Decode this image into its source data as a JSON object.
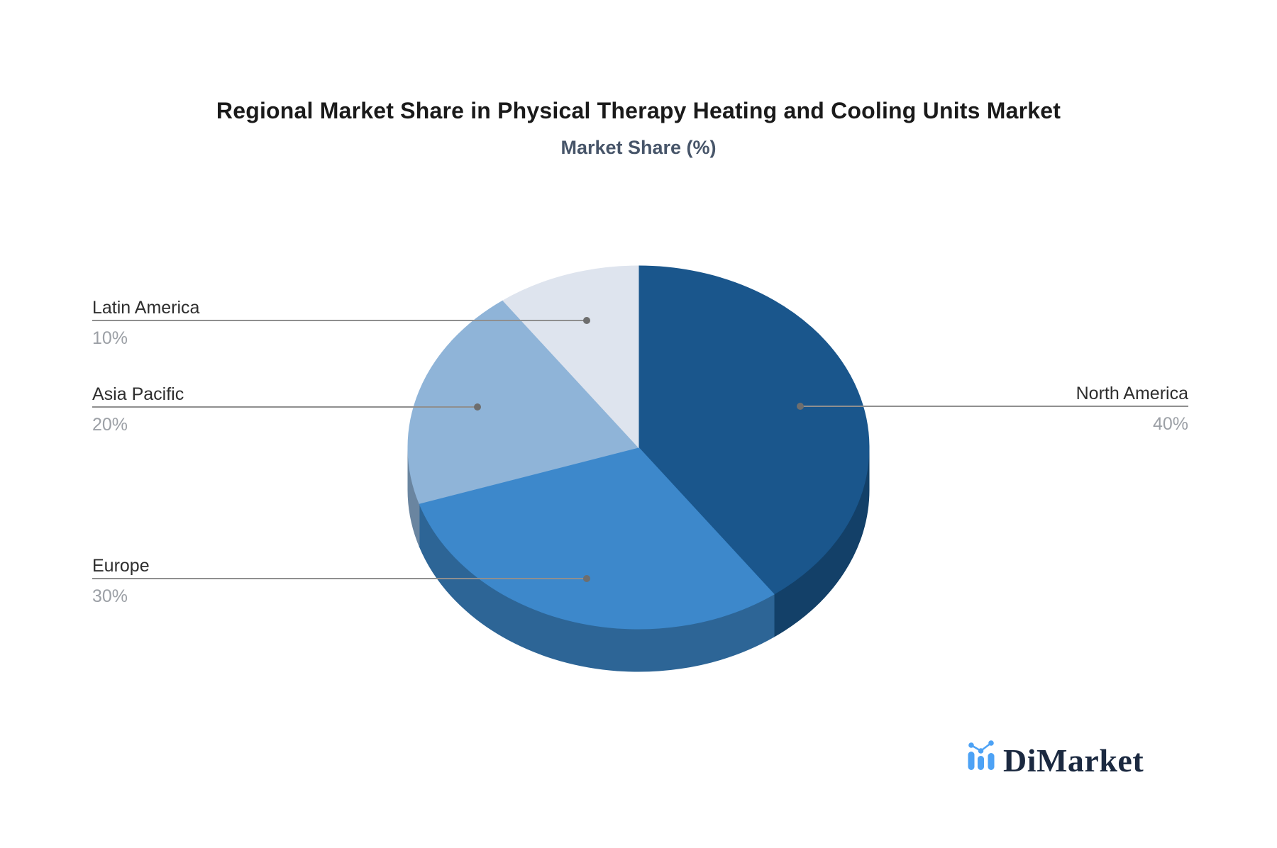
{
  "page": {
    "background": "#ffffff"
  },
  "chart_data": {
    "type": "pie",
    "style": "3d",
    "title": "Regional Market Share in Physical Therapy Heating and Cooling Units Market",
    "subtitle": "Market Share (%)",
    "unit": "%",
    "start_angle_deg": 0,
    "direction": "clockwise",
    "legend_position": "callout-labels",
    "slices": [
      {
        "label": "North America",
        "value": 40,
        "display": "40%",
        "color": "#1A568C"
      },
      {
        "label": "Europe",
        "value": 30,
        "display": "30%",
        "color": "#3D88CB"
      },
      {
        "label": "Asia Pacific",
        "value": 20,
        "display": "20%",
        "color": "#8FB4D8"
      },
      {
        "label": "Latin America",
        "value": 10,
        "display": "10%",
        "color": "#DEE4EE"
      }
    ],
    "callout_line_color": "#8F8F8F",
    "callout_dot_color": "#6E6E6E",
    "label_color": "#2E2E2E",
    "value_color": "#9CA0A6",
    "title_color": "#1A1A1A",
    "subtitle_color": "#475569"
  },
  "branding": {
    "logo_text": "DiMarket",
    "logo_icon": "bar-chart-icon",
    "logo_text_color": "#1B2940",
    "logo_icon_color": "#4DA2F5"
  }
}
